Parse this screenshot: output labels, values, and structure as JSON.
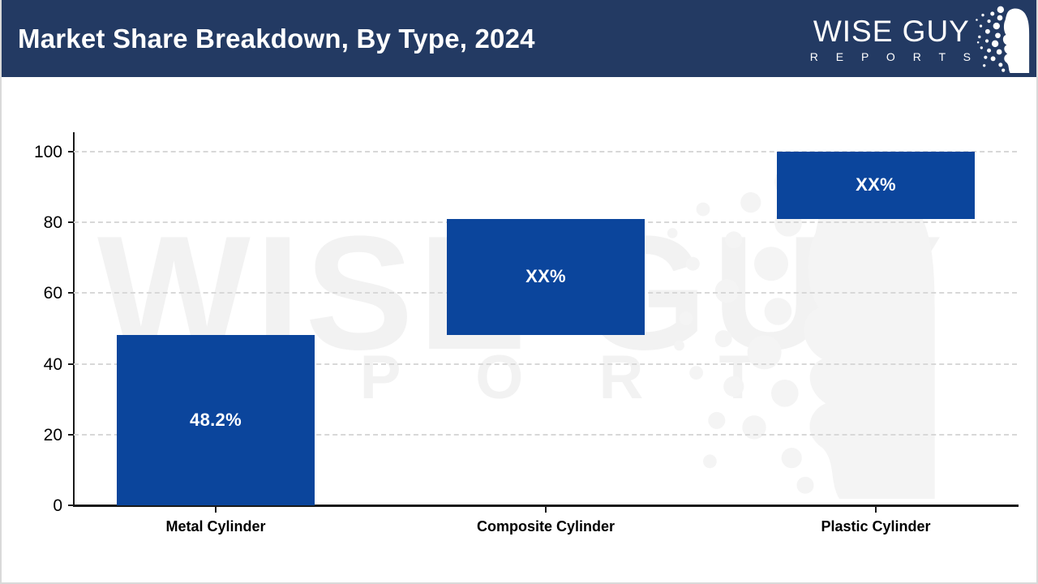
{
  "header": {
    "title": "Market Share Breakdown, By Type, 2024",
    "bg_color": "#233a63",
    "brand": {
      "name": "WISE GUY",
      "sub": "R E P O R T S"
    }
  },
  "watermark": {
    "line1": "WISE GUY",
    "line2": "R E P O R T S"
  },
  "chart_data": {
    "type": "bar",
    "subtype": "waterfall-segments",
    "title": "Market Share Breakdown, By Type, 2024",
    "categories": [
      "Metal Cylinder",
      "Composite Cylinder",
      "Plastic Cylinder"
    ],
    "series": [
      {
        "name": "Market Share (%)",
        "segments": [
          {
            "category": "Metal Cylinder",
            "start": 0,
            "end": 48.2,
            "label": "48.2%"
          },
          {
            "category": "Composite Cylinder",
            "start": 48.2,
            "end": 81,
            "label": "XX%"
          },
          {
            "category": "Plastic Cylinder",
            "start": 81,
            "end": 100,
            "label": "XX%"
          }
        ]
      }
    ],
    "xlabel": "",
    "ylabel": "",
    "ylim": [
      0,
      100
    ],
    "yticks": [
      0,
      20,
      40,
      60,
      80,
      100
    ],
    "grid": "horizontal-dashed",
    "legend": "none",
    "bar_color": "#0b459c",
    "bar_label_color": "#ffffff"
  }
}
